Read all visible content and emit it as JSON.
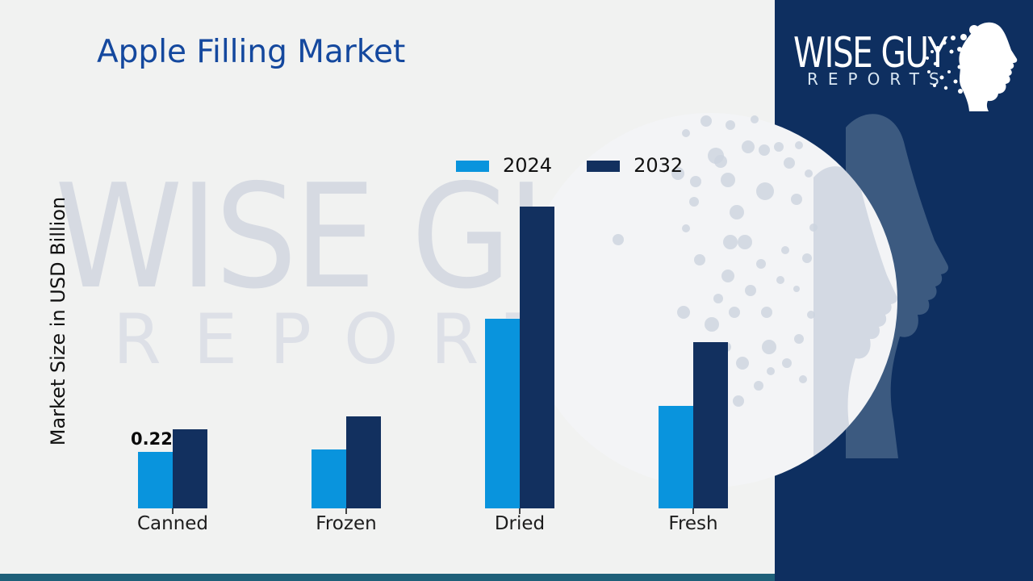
{
  "watermark": {
    "line1": "WISE GUY",
    "line2": "REPORTS"
  },
  "branding": {
    "line1": "WISE GUY",
    "line2": "REPORTS"
  },
  "colors": {
    "background": "#f1f2f1",
    "title_blue": "#14489e",
    "series_2024_blue": "#0994dd",
    "series_2032_navy": "#12305f",
    "panel_navy": "#0e2f60",
    "bottom_accent_teal": "#1e6079",
    "watermark_gray": "#d6dae2"
  },
  "chart_data": {
    "type": "bar",
    "title": "Apple Filling Market",
    "ylabel": "Market Size in USD Billion",
    "xlabel": "",
    "categories": [
      "Canned",
      "Frozen",
      "Dried",
      "Fresh"
    ],
    "series": [
      {
        "name": "2024",
        "color": "#0994dd",
        "values": [
          0.22,
          0.23,
          0.74,
          0.4
        ]
      },
      {
        "name": "2032",
        "color": "#12305f",
        "values": [
          0.31,
          0.36,
          1.18,
          0.65
        ]
      }
    ],
    "bar_labels": [
      {
        "series": "2024",
        "category": "Canned",
        "text": "0.22"
      }
    ],
    "legend_position": "top",
    "grid": false,
    "ylim": [
      0,
      1.25
    ]
  }
}
